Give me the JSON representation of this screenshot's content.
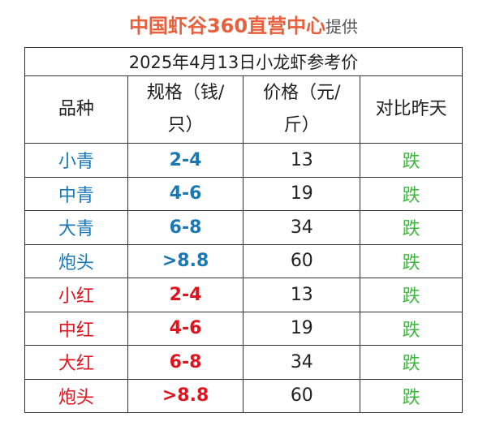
{
  "title": {
    "main": "中国虾谷360直营中心",
    "suffix": "提供"
  },
  "table": {
    "caption": "2025年4月13日小龙虾参考价",
    "headers": [
      "品种",
      "规格（钱/只）",
      "价格（元/斤）",
      "对比昨天"
    ],
    "rows": [
      {
        "variety": "小青",
        "spec": "2-4",
        "price": "13",
        "trend": "跌",
        "color": "blue"
      },
      {
        "variety": "中青",
        "spec": "4-6",
        "price": "19",
        "trend": "跌",
        "color": "blue"
      },
      {
        "variety": "大青",
        "spec": "6-8",
        "price": "34",
        "trend": "跌",
        "color": "blue"
      },
      {
        "variety": "炮头",
        "spec": ">8.8",
        "price": "60",
        "trend": "跌",
        "color": "blue"
      },
      {
        "variety": "小红",
        "spec": "2-4",
        "price": "13",
        "trend": "跌",
        "color": "red"
      },
      {
        "variety": "中红",
        "spec": "4-6",
        "price": "19",
        "trend": "跌",
        "color": "red"
      },
      {
        "variety": "大红",
        "spec": "6-8",
        "price": "34",
        "trend": "跌",
        "color": "red"
      },
      {
        "variety": "炮头",
        "spec": ">8.8",
        "price": "60",
        "trend": "跌",
        "color": "red"
      }
    ]
  },
  "colors": {
    "title": "#e8603c",
    "blue": "#1a78b4",
    "red": "#e0141e",
    "down": "#3cb83c"
  }
}
